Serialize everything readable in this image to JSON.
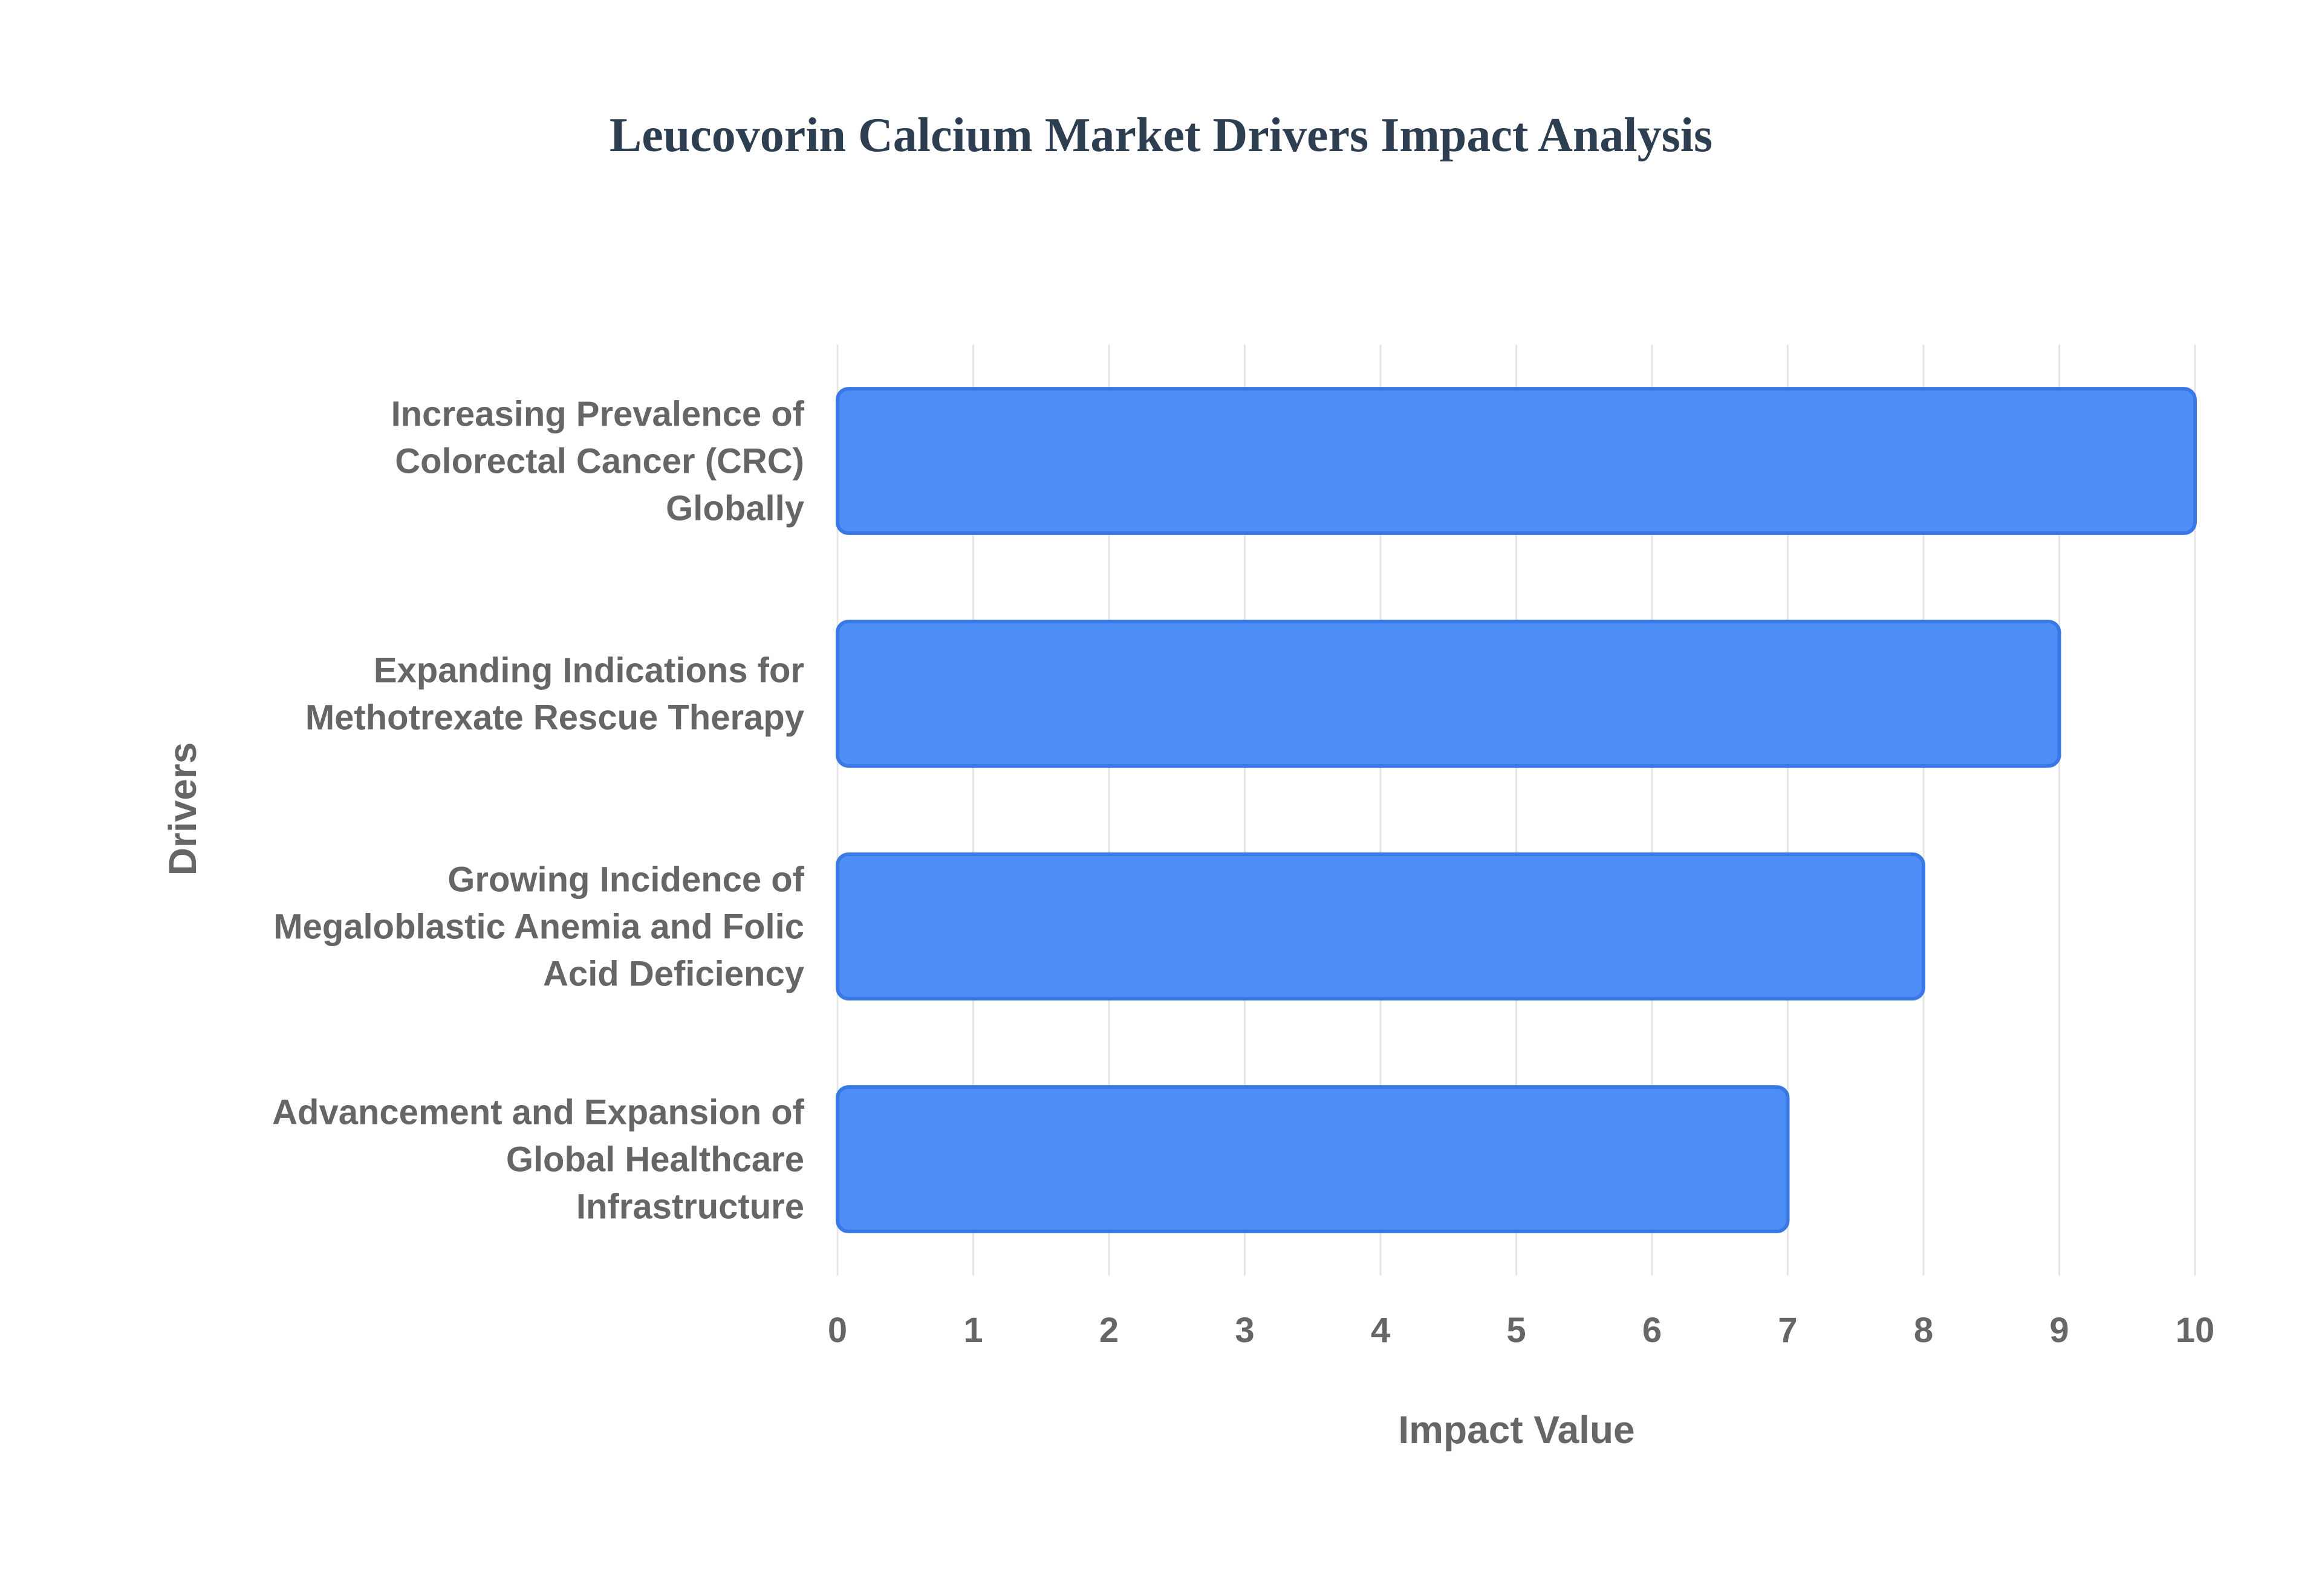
{
  "chart_data": {
    "type": "bar",
    "orientation": "horizontal",
    "title": "Leucovorin Calcium Market Drivers Impact Analysis",
    "xlabel": "Impact Value",
    "ylabel": "Drivers",
    "categories": [
      [
        "Increasing Prevalence of",
        "Colorectal Cancer (CRC)",
        "Globally"
      ],
      [
        "Expanding Indications for",
        "Methotrexate Rescue Therapy"
      ],
      [
        "Growing Incidence of",
        "Megaloblastic Anemia and Folic",
        "Acid Deficiency"
      ],
      [
        "Advancement and Expansion of",
        "Global Healthcare",
        "Infrastructure"
      ]
    ],
    "values": [
      10,
      9,
      8,
      7
    ],
    "xlim": [
      0,
      10
    ],
    "xticks": [
      "0",
      "1",
      "2",
      "3",
      "4",
      "5",
      "6",
      "7",
      "8",
      "9",
      "10"
    ],
    "grid": true,
    "legend": "none",
    "colors": {
      "bar_fill": "#4e8ef7",
      "bar_stroke": "#3a78e6",
      "title": "#2c3e50",
      "text": "#666666",
      "grid": "#e6e6e6"
    }
  }
}
